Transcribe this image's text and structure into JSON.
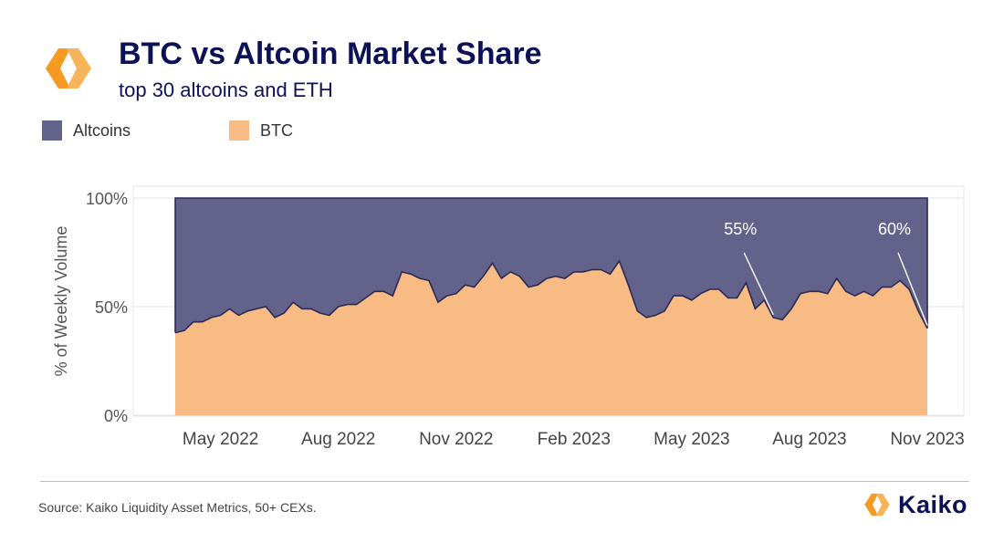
{
  "header": {
    "title": "BTC vs Altcoin Market Share",
    "subtitle": "top 30 altcoins and ETH"
  },
  "colors": {
    "altcoins": "#63628b",
    "btc": "#f7bb83",
    "title": "#0d1155",
    "logo": "#f59a23"
  },
  "icons": {
    "brand_logo": "kaiko-logo-icon"
  },
  "chart_data": {
    "type": "area",
    "title": "BTC vs Altcoin Market Share",
    "subtitle": "top 30 altcoins and ETH",
    "xlabel": "",
    "ylabel": "% of Weekly Volume",
    "ylim": [
      0,
      100
    ],
    "yticks": [
      {
        "value": 0,
        "label": "0%"
      },
      {
        "value": 50,
        "label": "50%"
      },
      {
        "value": 100,
        "label": "100%"
      }
    ],
    "xticks": [
      {
        "week": 5,
        "label": "May 2022"
      },
      {
        "week": 18,
        "label": "Aug 2022"
      },
      {
        "week": 31,
        "label": "Nov 2022"
      },
      {
        "week": 44,
        "label": "Feb 2023"
      },
      {
        "week": 57,
        "label": "May 2023"
      },
      {
        "week": 70,
        "label": "Aug 2023"
      },
      {
        "week": 83,
        "label": "Nov 2023"
      }
    ],
    "legend": [
      "Altcoins",
      "BTC"
    ],
    "grid": true,
    "stacked": true,
    "series": [
      {
        "name": "BTC",
        "values": [
          38,
          39,
          43,
          43,
          45,
          46,
          49,
          46,
          48,
          49,
          50,
          45,
          47,
          52,
          49,
          49,
          47,
          46,
          50,
          51,
          51,
          54,
          57,
          57,
          55,
          66,
          65,
          63,
          62,
          52,
          55,
          56,
          60,
          59,
          64,
          70,
          63,
          66,
          64,
          59,
          60,
          63,
          64,
          63,
          66,
          66,
          67,
          67,
          65,
          71,
          60,
          48,
          45,
          46,
          48,
          55,
          55,
          53,
          56,
          58,
          58,
          54,
          54,
          61,
          49,
          53,
          45,
          44,
          49,
          56,
          57,
          57,
          56,
          63,
          57,
          55,
          57,
          55,
          59,
          59,
          62,
          58,
          48,
          40
        ]
      },
      {
        "name": "Altcoins",
        "values": [
          62,
          61,
          57,
          57,
          55,
          54,
          51,
          54,
          52,
          51,
          50,
          55,
          53,
          48,
          51,
          51,
          53,
          54,
          50,
          49,
          49,
          46,
          43,
          43,
          45,
          34,
          35,
          37,
          38,
          48,
          45,
          44,
          40,
          41,
          36,
          30,
          37,
          34,
          36,
          41,
          40,
          37,
          36,
          37,
          34,
          34,
          33,
          33,
          35,
          29,
          40,
          52,
          55,
          54,
          52,
          45,
          45,
          47,
          44,
          42,
          42,
          46,
          46,
          39,
          51,
          47,
          55,
          56,
          51,
          44,
          43,
          43,
          44,
          37,
          43,
          45,
          43,
          45,
          41,
          41,
          38,
          42,
          52,
          60
        ]
      }
    ],
    "annotations": [
      {
        "label": "55%",
        "week": 66
      },
      {
        "label": "60%",
        "week": 83
      }
    ]
  },
  "footer": {
    "source": "Source: Kaiko Liquidity Asset Metrics, 50+ CEXs.",
    "brand": "Kaiko"
  }
}
